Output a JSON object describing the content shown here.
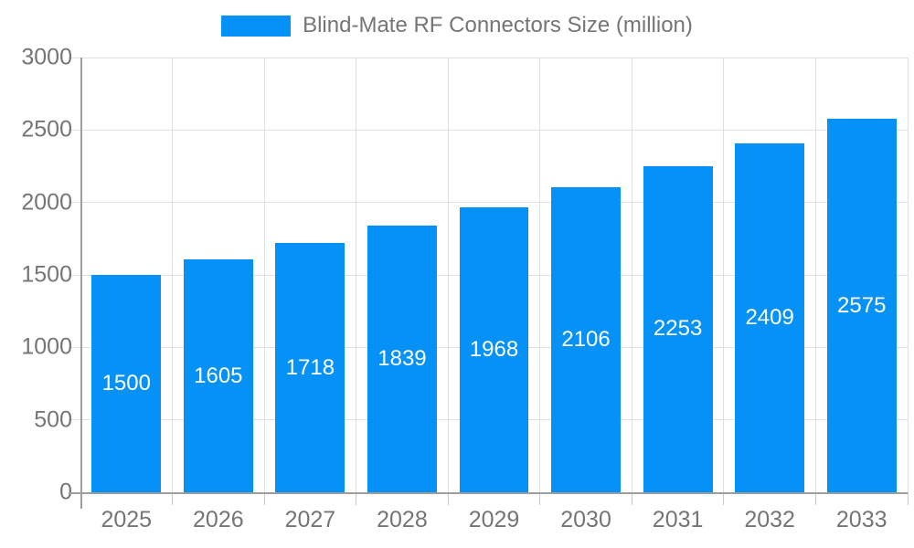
{
  "legend": {
    "label": "Blind-Mate RF Connectors Size (million)"
  },
  "colors": {
    "bar": "#0591F5",
    "grid": "#E0E0E0",
    "axis": "#9E9E9E",
    "tick": "#C9C9C9",
    "text": "#757575",
    "bar_label": "#FFFFFF",
    "background": "#FFFFFF"
  },
  "chart_data": {
    "type": "bar",
    "title": "Blind-Mate RF Connectors Size (million)",
    "categories": [
      "2025",
      "2026",
      "2027",
      "2028",
      "2029",
      "2030",
      "2031",
      "2032",
      "2033"
    ],
    "values": [
      1500,
      1605,
      1718,
      1839,
      1968,
      2106,
      2253,
      2409,
      2575
    ],
    "xlabel": "",
    "ylabel": "",
    "ylim": [
      0,
      3000
    ],
    "yticks": [
      0,
      500,
      1000,
      1500,
      2000,
      2500,
      3000
    ],
    "grid": true,
    "legend_position": "top",
    "bar_label_position": "inside-middle",
    "bar_width_fraction": 0.755
  }
}
